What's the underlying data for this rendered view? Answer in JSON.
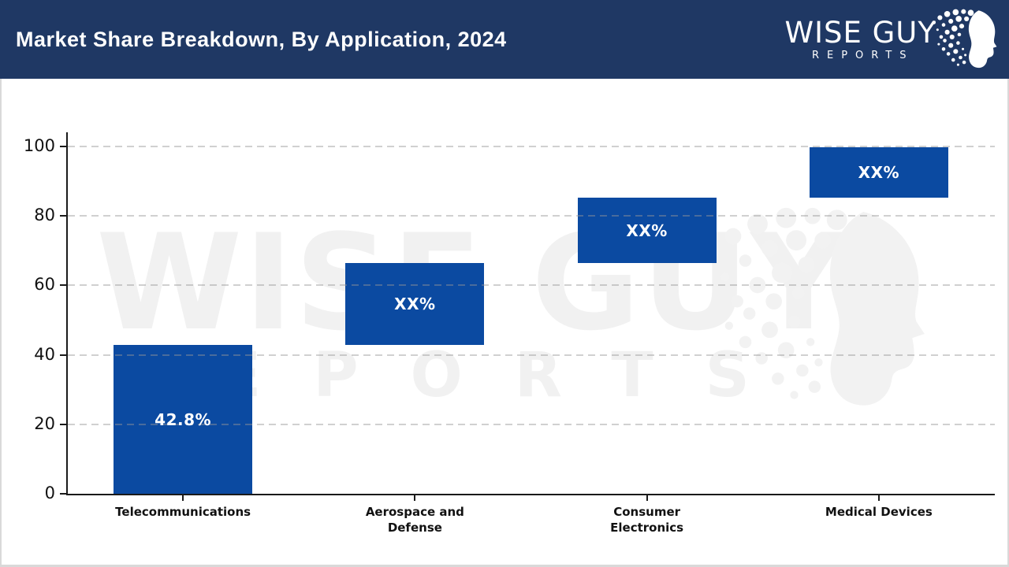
{
  "header": {
    "title": "Market Share Breakdown, By Application, 2024",
    "logo": {
      "line1": "WISE GUY",
      "line2": "REPORTS"
    }
  },
  "watermark": {
    "line1": "WISE GUY",
    "line2": "REPORTS"
  },
  "colors": {
    "header_background": "#1f3864",
    "bar_fill": "#0b4aa1",
    "bar_label_text": "#ffffff",
    "watermark": "#f1f1f1",
    "axis": "#1a1a1a",
    "page_edge": "#d9d9d9"
  },
  "chart_data": {
    "type": "bar",
    "subtype": "waterfall-stacked",
    "title": "Market Share Breakdown, By Application, 2024",
    "categories": [
      "Telecommunications",
      "Aerospace and\nDefense",
      "Consumer\nElectronics",
      "Medical Devices"
    ],
    "segments": [
      {
        "category": "Telecommunications",
        "start": 0,
        "end": 42.8,
        "label": "42.8%"
      },
      {
        "category": "Aerospace and Defense",
        "start": 42.8,
        "end": 66.4,
        "label": "XX%"
      },
      {
        "category": "Consumer Electronics",
        "start": 66.4,
        "end": 85.2,
        "label": "XX%"
      },
      {
        "category": "Medical Devices",
        "start": 85.2,
        "end": 99.8,
        "label": "XX%"
      }
    ],
    "xlabel": "",
    "ylabel": "",
    "yticks": [
      0,
      20,
      40,
      60,
      80,
      100
    ],
    "ylim": [
      0,
      104
    ],
    "grid": "horizontal-dashed",
    "grid_over_bars": true,
    "legend": null,
    "bar_color": "#0b4aa1",
    "label_color": "#ffffff"
  }
}
